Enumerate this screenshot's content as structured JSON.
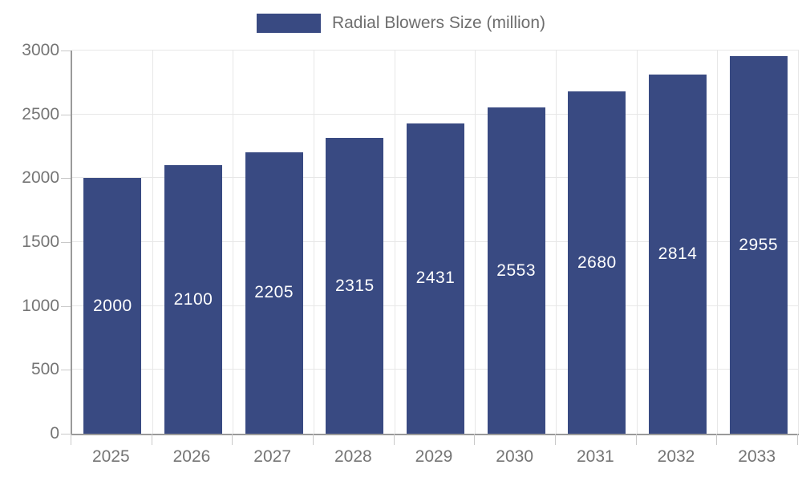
{
  "colors": {
    "bar": "#394a82",
    "bar_value_text": "#ffffff",
    "axis_text": "#757575",
    "legend_text": "#6e6e6e",
    "axis_line": "#9a9a9a",
    "gridline": "#e7e7e7",
    "tick": "#c9c9c9",
    "background": "#ffffff"
  },
  "legend": {
    "label": "Radial Blowers Size (million)"
  },
  "chart_data": {
    "type": "bar",
    "title": "Radial Blowers Size (million)",
    "categories": [
      "2025",
      "2026",
      "2027",
      "2028",
      "2029",
      "2030",
      "2031",
      "2032",
      "2033"
    ],
    "values": [
      2000,
      2100,
      2205,
      2315,
      2431,
      2553,
      2680,
      2814,
      2955
    ],
    "series": [
      {
        "name": "Radial Blowers Size (million)",
        "values": [
          2000,
          2100,
          2205,
          2315,
          2431,
          2553,
          2680,
          2814,
          2955
        ]
      }
    ],
    "value_labels_shown": true,
    "value_label_position": "inside-center",
    "xlabel": "",
    "ylabel": "",
    "ylim": [
      0,
      3000
    ],
    "yticks": [
      0,
      500,
      1000,
      1500,
      2000,
      2500,
      3000
    ],
    "grid": true,
    "legend_position": "top-center",
    "bar_color": "#394a82"
  }
}
